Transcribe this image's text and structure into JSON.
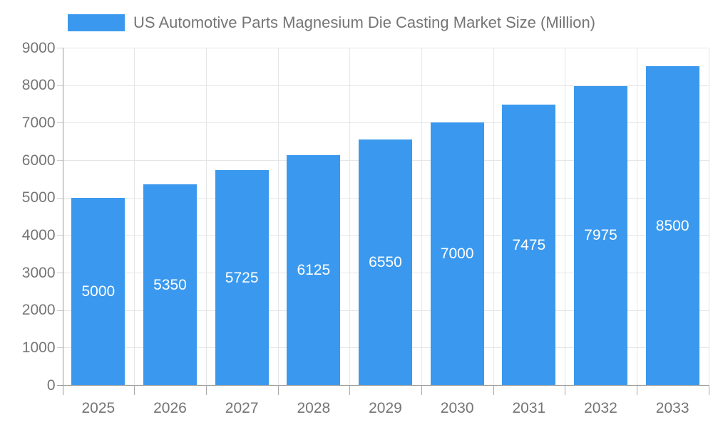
{
  "legend": {
    "label": "US Automotive Parts Magnesium Die Casting Market Size (Million)"
  },
  "chart_data": {
    "type": "bar",
    "title": "US Automotive Parts Magnesium Die Casting Market Size (Million)",
    "categories": [
      "2025",
      "2026",
      "2027",
      "2028",
      "2029",
      "2030",
      "2031",
      "2032",
      "2033"
    ],
    "values": [
      5000,
      5350,
      5725,
      6125,
      6550,
      7000,
      7475,
      7975,
      8500
    ],
    "xlabel": "",
    "ylabel": "",
    "ylim": [
      0,
      9000
    ],
    "ytick_step": 1000,
    "ytick_labels": [
      "0",
      "1000",
      "2000",
      "3000",
      "4000",
      "5000",
      "6000",
      "7000",
      "8000",
      "9000"
    ],
    "grid": true,
    "legend_position": "top-left",
    "bar_color": "#3a99ee",
    "value_label_color": "#ffffff",
    "axis_line_color": "#999999",
    "gridline_color": "#e6e6e6",
    "axis_text_color": "#757575"
  }
}
